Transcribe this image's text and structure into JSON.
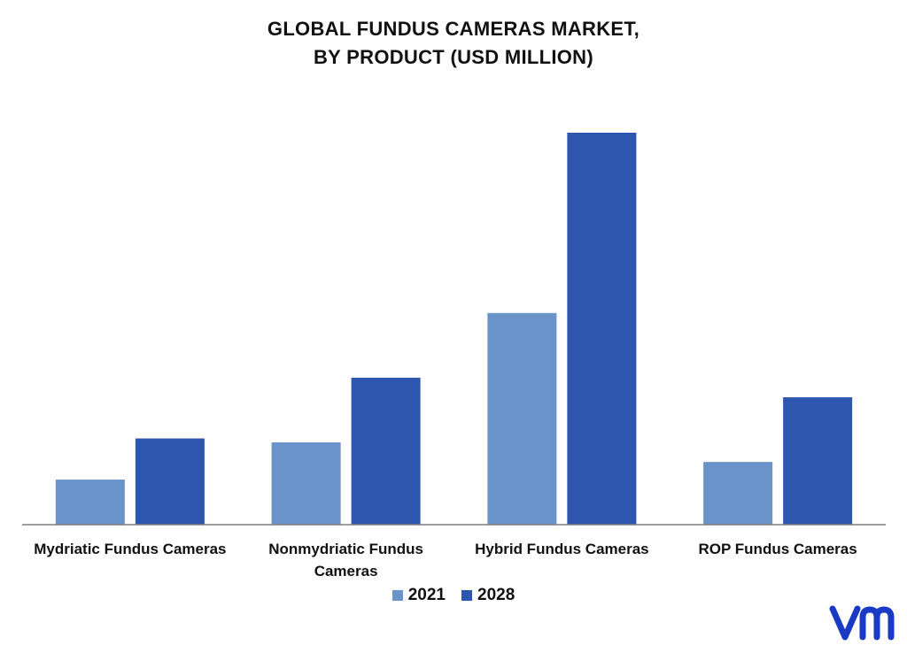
{
  "title_lines": [
    "GLOBAL FUNDUS CAMERAS MARKET,",
    "BY PRODUCT (USD MILLION)"
  ],
  "chart_data": {
    "type": "bar",
    "title": "GLOBAL FUNDUS CAMERAS MARKET, BY PRODUCT (USD MILLION)",
    "categories": [
      [
        "Mydriatic Fundus Cameras"
      ],
      [
        "Nonmydriatic Fundus",
        "Cameras"
      ],
      [
        "Hybrid Fundus Cameras"
      ],
      [
        "ROP Fundus Cameras"
      ]
    ],
    "series": [
      {
        "name": "2021",
        "color": "#6a93c9",
        "values": [
          11.5,
          21,
          54,
          16
        ]
      },
      {
        "name": "2028",
        "color": "#2f56ae",
        "values": [
          22,
          37.5,
          100,
          32.5
        ]
      }
    ],
    "ylim": [
      0,
      100
    ],
    "grid": false,
    "legend_position": "bottom-center"
  },
  "logo": {
    "text": "vm",
    "color": "#1a3ac5"
  }
}
